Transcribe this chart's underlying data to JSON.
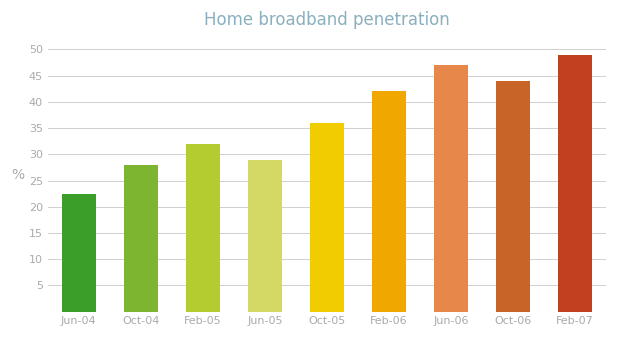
{
  "title": "Home broadband penetration",
  "categories": [
    "Jun-04",
    "Oct-04",
    "Feb-05",
    "Jun-05",
    "Oct-05",
    "Feb-06",
    "Jun-06",
    "Oct-06",
    "Feb-07"
  ],
  "values": [
    22.5,
    28.0,
    32.0,
    29.0,
    36.0,
    42.0,
    47.0,
    44.0,
    49.0
  ],
  "bar_colors": [
    "#3a9e28",
    "#7db530",
    "#b5cc30",
    "#d4d966",
    "#f0cc00",
    "#f0a800",
    "#e8874a",
    "#c96428",
    "#c04020"
  ],
  "ylabel": "%",
  "ylim": [
    0,
    52
  ],
  "yticks": [
    5,
    10,
    15,
    20,
    25,
    30,
    35,
    40,
    45,
    50
  ],
  "background_color": "#ffffff",
  "grid_color": "#d0d0d0",
  "title_color": "#8ab0be",
  "title_fontsize": 12,
  "tick_color": "#aaaaaa",
  "tick_fontsize": 8,
  "bar_width": 0.55
}
